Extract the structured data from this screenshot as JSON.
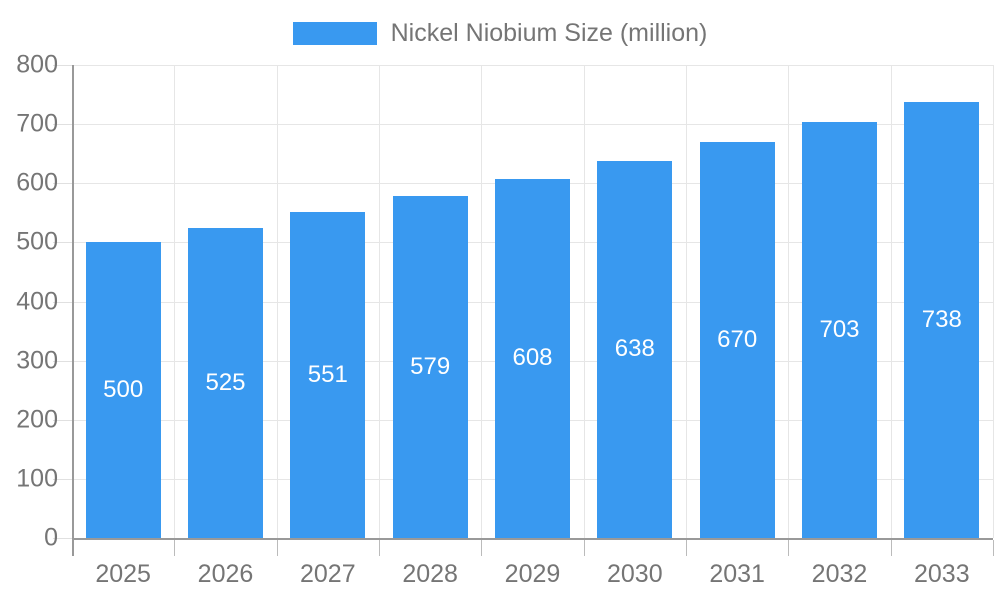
{
  "legend": {
    "label": "Nickel Niobium Size (million)"
  },
  "colors": {
    "bar": "#3999F0",
    "bar_label": "#FFFFFF",
    "grid": "#E6E6E6",
    "axis": "#999999",
    "y_tick_mark": "#E0E0E0",
    "x_tick_mark": "#BBBBBB",
    "tick_label_text": "#757575",
    "legend_text": "#757575",
    "background": "#FFFFFF"
  },
  "chart_data": {
    "type": "bar",
    "title": "",
    "categories": [
      "2025",
      "2026",
      "2027",
      "2028",
      "2029",
      "2030",
      "2031",
      "2032",
      "2033"
    ],
    "series": [
      {
        "name": "Nickel Niobium Size (million)",
        "values": [
          500,
          525,
          551,
          579,
          608,
          638,
          670,
          703,
          738
        ]
      }
    ],
    "bar_labels": [
      "500",
      "525",
      "551",
      "579",
      "608",
      "638",
      "670",
      "703",
      "738"
    ],
    "xlabel": "",
    "ylabel": "",
    "ylim": [
      0,
      800
    ],
    "yticks": [
      0,
      100,
      200,
      300,
      400,
      500,
      600,
      700,
      800
    ],
    "grid": true,
    "legend_position": "top",
    "bar_labels_visible": true
  }
}
